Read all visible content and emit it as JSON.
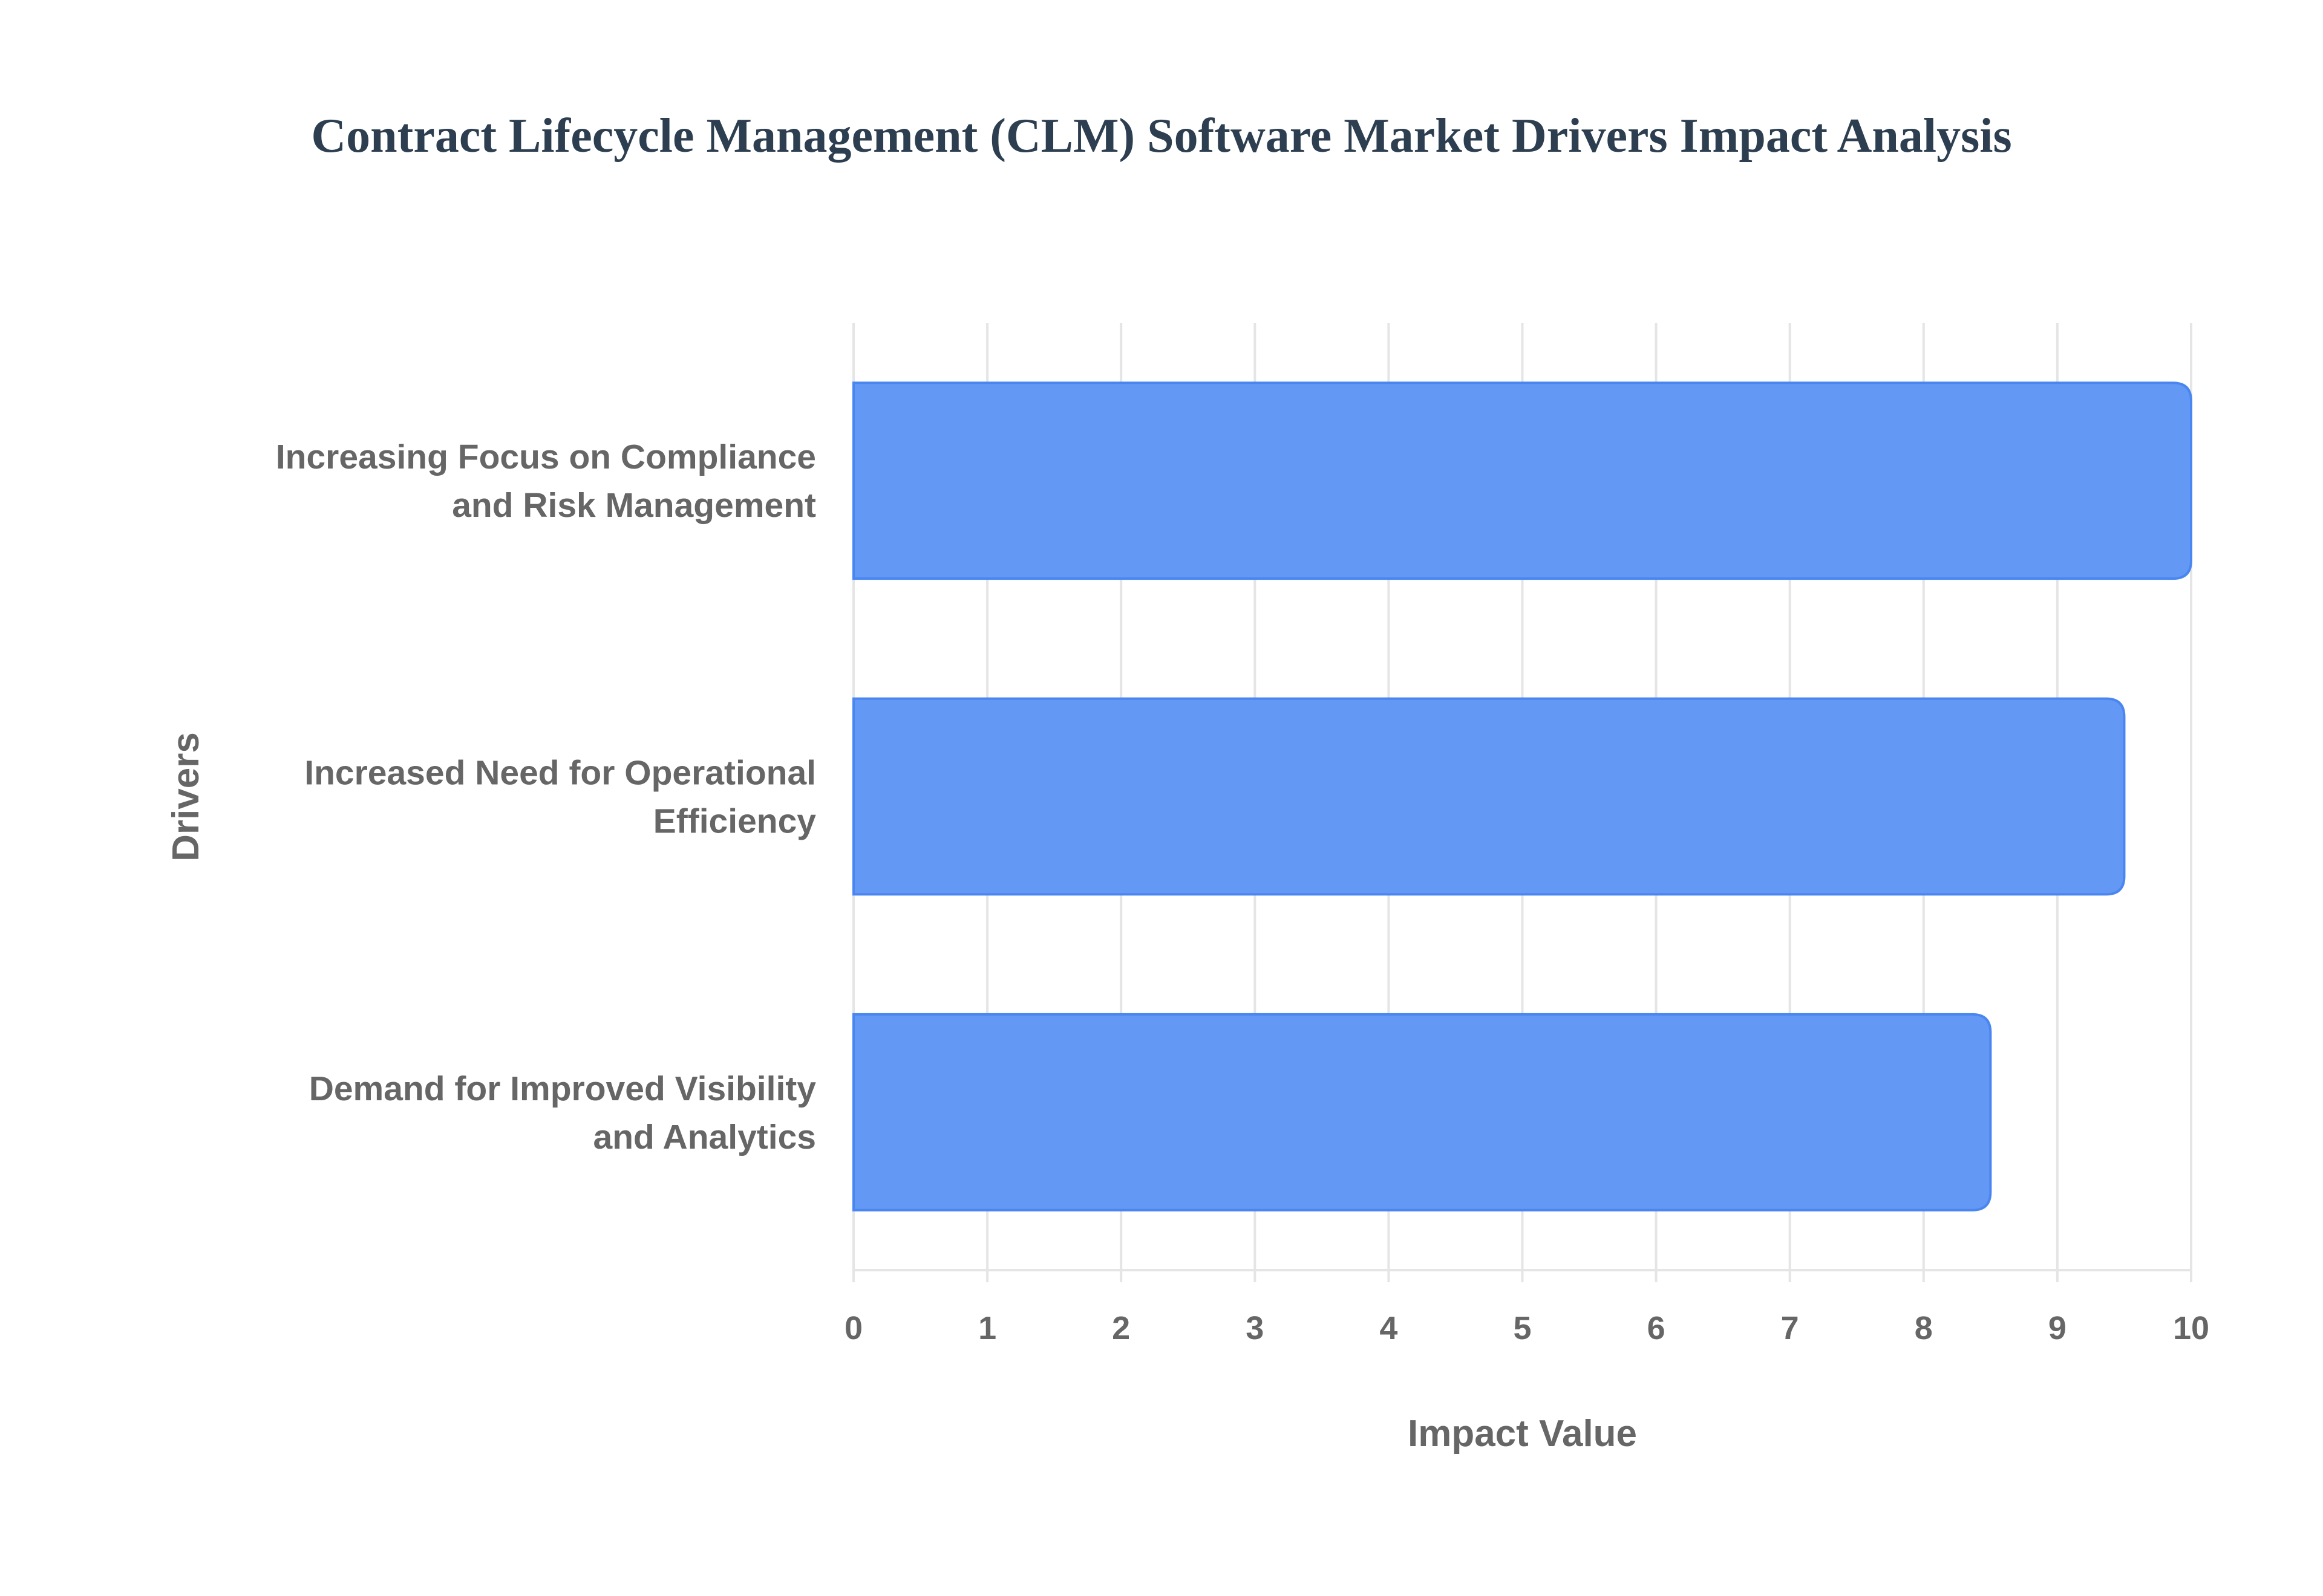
{
  "chart_data": {
    "type": "bar",
    "orientation": "horizontal",
    "title": "Contract Lifecycle Management (CLM) Software Market Drivers Impact Analysis",
    "xlabel": "Impact Value",
    "ylabel": "Drivers",
    "categories": [
      [
        "Increasing Focus on Compliance",
        "and Risk Management"
      ],
      [
        "Increased Need for Operational",
        "Efficiency"
      ],
      [
        "Demand for Improved Visibility",
        "and Analytics"
      ]
    ],
    "values": [
      10,
      9.5,
      8.5
    ],
    "xlim": [
      0,
      10
    ],
    "xticks": [
      0,
      1,
      2,
      3,
      4,
      5,
      6,
      7,
      8,
      9,
      10
    ],
    "grid": true,
    "bar_color": "#6399f5",
    "bar_border": "#4a86f0"
  }
}
